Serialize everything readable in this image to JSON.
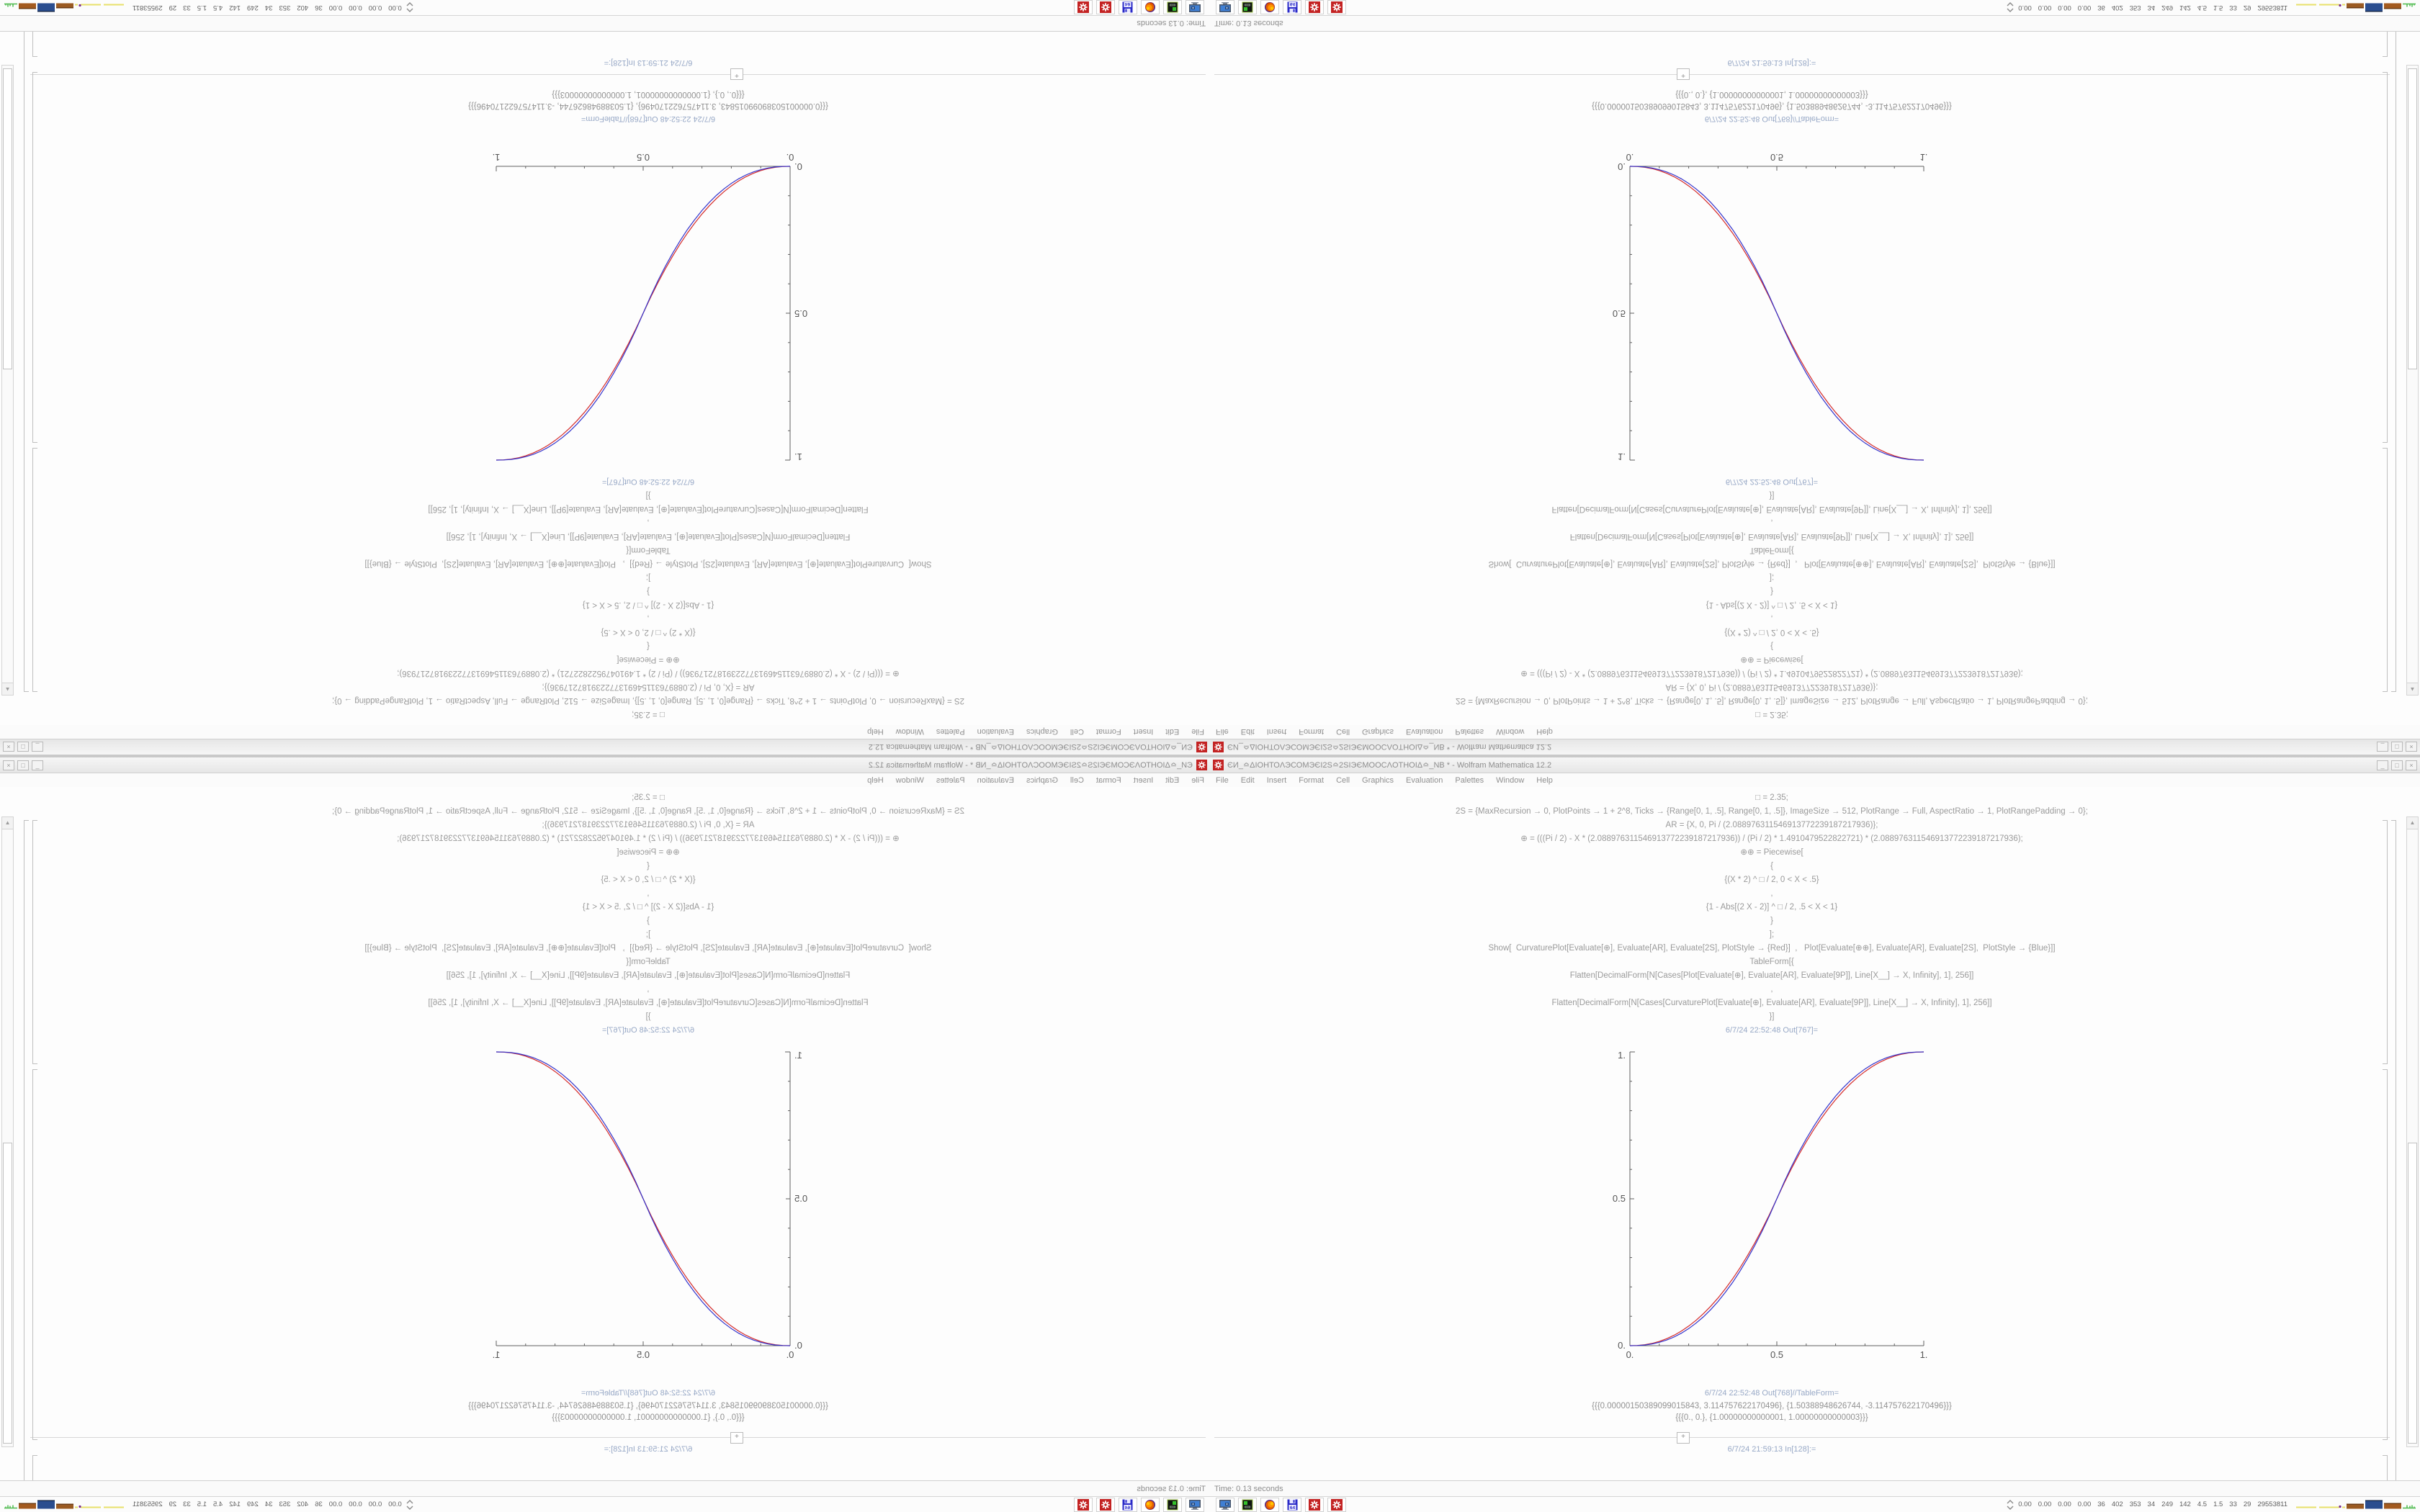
{
  "notebook": {
    "title": "ЄИ_≏ΔІОНТОΛЭСОМЭЄІ2Ѕ≏2ЅІЭЄМООСΛОТНОІΔ≏_NB * - Wolfram Mathematica 12.2",
    "window_buttons": [
      "_",
      "□",
      "×"
    ],
    "menu": [
      "File",
      "Edit",
      "Insert",
      "Format",
      "Cell",
      "Graphics",
      "Evaluation",
      "Palettes",
      "Window",
      "Help"
    ],
    "code_lines": [
      "□ = 2.35;",
      "2S = {MaxRecursion → 0, PlotPoints → 1 + 2^8, Ticks → {Range[0, 1, .5], Range[0, 1, .5]}, ImageSize → 512, PlotRange → Full, AspectRatio → 1, PlotRangePadding → 0};",
      "AR = {X, 0, Pi / (2.088976311546913772239187217936)};",
      "⊕ = (((Pi / 2) - X * (2.088976311546913772239187217936)) / (Pi / 2) * 1.4910479522822721) * (2.088976311546913772239187217936);",
      "⊕⊕ = Piecewise[",
      "{",
      "{(X * 2) ^ □ / 2, 0 < X < .5}",
      ",",
      "{1 - Abs[(2 X - 2)] ^ □ / 2, .5 < X < 1}",
      "}",
      "];",
      "Show[  CurvaturePlot[Evaluate[⊕], Evaluate[AR], Evaluate[2S], PlotStyle → {Red}]  ,   Plot[Evaluate[⊕⊕], Evaluate[AR], Evaluate[2S],  PlotStyle → {Blue}]]",
      "TableForm[{",
      "Flatten[DecimalForm[N[Cases[Plot[Evaluate[⊕], Evaluate[AR], Evaluate[9P]], Line[X__] → X, Infinity], 1], 256]]",
      ",",
      "Flatten[DecimalForm[N[Cases[CurvaturePlot[Evaluate[⊕], Evaluate[AR], Evaluate[9P]], Line[X__] → X, Infinity], 1], 256]]",
      "}]"
    ],
    "out1_label": "6/7/24 22:52:48 Out[767]=",
    "out2_label": "6/7/24 22:52:48 Out[768]//TableForm=",
    "out2_lines": [
      "{{{0.00000150389099015843, 3.114757622170496}, {1.50388948626744, -3.114757622170496}}}",
      "{{{0., 0.}, {1.00000000000001, 1.00000000000003}}}"
    ],
    "insert_plus": "+",
    "in_next_label": "6/7/24 21:59:13 In[128]:=",
    "status": "Time: 0.13 seconds",
    "scroll_up_glyph": "▲"
  },
  "taskbar": {
    "icons": [
      {
        "name": "screenshot-tool-icon"
      },
      {
        "name": "emulator-icon"
      },
      {
        "name": "firefox-icon"
      },
      {
        "name": "floppy-64-icon",
        "label": "64"
      },
      {
        "name": "wolfram-gear-icon"
      },
      {
        "name": "wolfram-gear-icon"
      }
    ],
    "tray_numbers": [
      "0.00",
      "0.00",
      "0.00",
      "0.00",
      "36",
      "402",
      "353",
      "34",
      "249",
      "142",
      "4.5",
      "1.5",
      "33",
      "29",
      "29553811"
    ]
  },
  "chart_data": {
    "type": "line",
    "title": "",
    "xlabel": "",
    "ylabel": "",
    "xlim": [
      0,
      1
    ],
    "ylim": [
      0,
      1
    ],
    "x_ticks": [
      "0.",
      "0.5",
      "1."
    ],
    "y_ticks": [
      "0.",
      "0.5",
      "1."
    ],
    "grid": false,
    "legend_position": "none",
    "x": [
      0,
      0.025,
      0.05,
      0.075,
      0.1,
      0.125,
      0.15,
      0.175,
      0.2,
      0.225,
      0.25,
      0.275,
      0.3,
      0.325,
      0.35,
      0.375,
      0.4,
      0.425,
      0.45,
      0.475,
      0.5,
      0.525,
      0.55,
      0.575,
      0.6,
      0.625,
      0.65,
      0.675,
      0.7,
      0.725,
      0.75,
      0.775,
      0.8,
      0.825,
      0.85,
      0.875,
      0.9,
      0.925,
      0.95,
      0.975,
      1
    ],
    "series": [
      {
        "name": "CurvaturePlot ⊕ (Red)",
        "color": "#d42a2a",
        "y": [
          0,
          0.0007,
          0.0031,
          0.0077,
          0.0145,
          0.0237,
          0.0353,
          0.0496,
          0.0666,
          0.0863,
          0.1088,
          0.1343,
          0.1625,
          0.1938,
          0.2281,
          0.2655,
          0.3061,
          0.3497,
          0.3966,
          0.4466,
          0.5,
          0.5534,
          0.6034,
          0.6503,
          0.6939,
          0.7345,
          0.7719,
          0.8062,
          0.8375,
          0.8657,
          0.8912,
          0.9137,
          0.9334,
          0.9504,
          0.9647,
          0.9763,
          0.9855,
          0.9923,
          0.9969,
          0.9993,
          1
        ]
      },
      {
        "name": "Plot ⊕⊕ (Blue)",
        "color": "#3333cc",
        "y": [
          0,
          0.0004,
          0.0022,
          0.0058,
          0.0114,
          0.0192,
          0.0295,
          0.0424,
          0.058,
          0.0766,
          0.098,
          0.1227,
          0.1505,
          0.1821,
          0.216,
          0.2543,
          0.296,
          0.3412,
          0.39,
          0.4432,
          0.5,
          0.5568,
          0.61,
          0.6588,
          0.704,
          0.7457,
          0.784,
          0.8179,
          0.8495,
          0.8773,
          0.902,
          0.9234,
          0.942,
          0.9576,
          0.9705,
          0.9808,
          0.9886,
          0.9942,
          0.9978,
          0.9996,
          1
        ]
      }
    ]
  }
}
